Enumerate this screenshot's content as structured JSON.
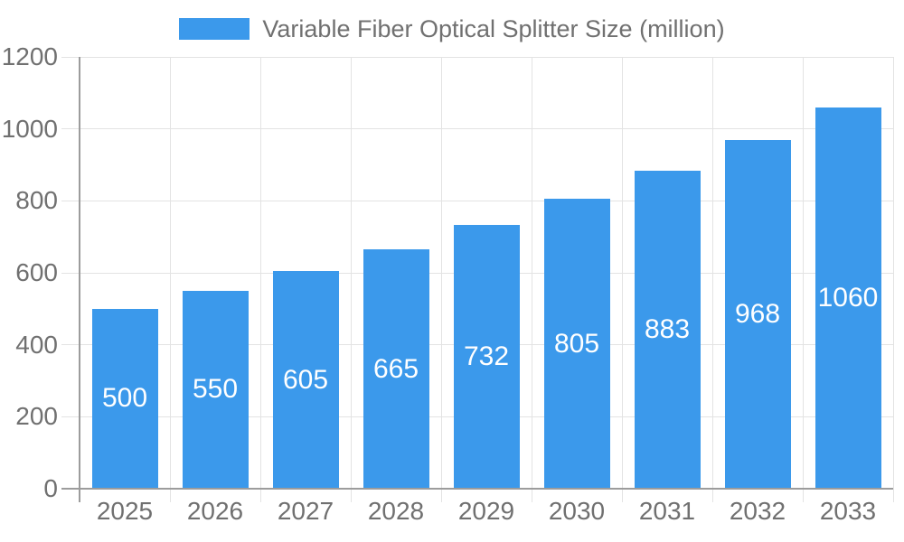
{
  "chart_data": {
    "type": "bar",
    "legend": [
      "Variable Fiber Optical Splitter Size (million)"
    ],
    "legend_position": "top",
    "categories": [
      "2025",
      "2026",
      "2027",
      "2028",
      "2029",
      "2030",
      "2031",
      "2032",
      "2033"
    ],
    "values": [
      500,
      550,
      605,
      665,
      732,
      805,
      883,
      968,
      1060
    ],
    "value_labels": [
      "500",
      "550",
      "605",
      "665",
      "732",
      "805",
      "883",
      "968",
      "1060"
    ],
    "ytick_labels": [
      "0",
      "200",
      "400",
      "600",
      "800",
      "1000",
      "1200"
    ],
    "ylim": [
      0,
      1200
    ],
    "ytick_step": 200,
    "grid": true,
    "xlabel": "",
    "ylabel": "",
    "colors": {
      "bar": "#3B99EB",
      "grid_line": "#E3E3E3",
      "axis_line": "#9C9C9C",
      "tick_text": "#707070",
      "value_text": "#FFFFFF",
      "background": "#FFFFFF"
    }
  }
}
